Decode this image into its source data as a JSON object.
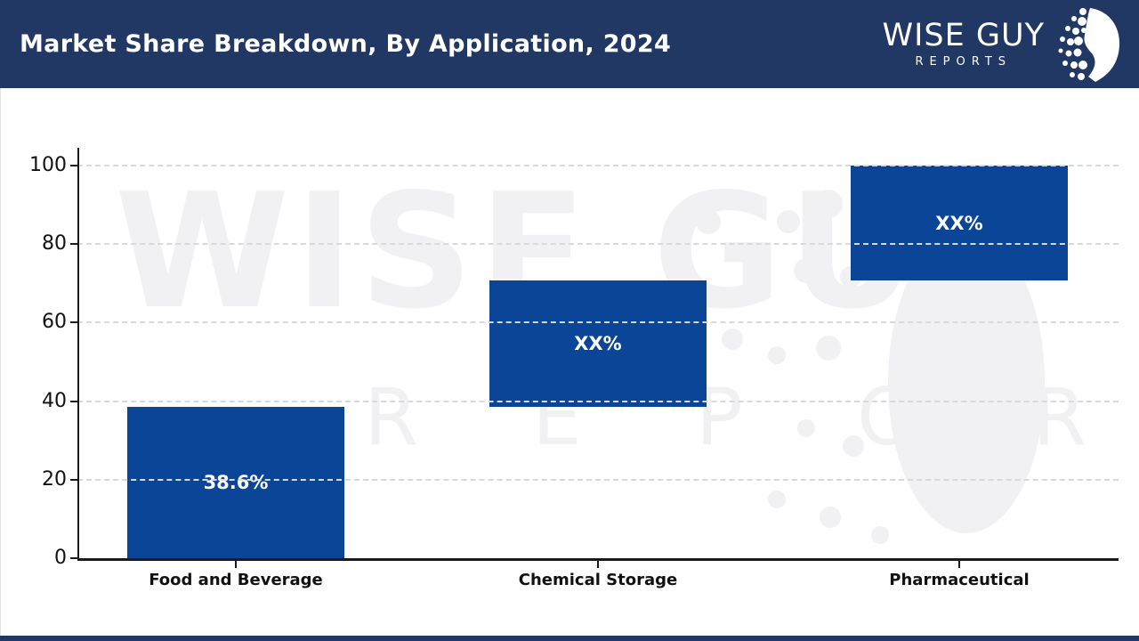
{
  "header": {
    "title": "Market Share Breakdown, By Application, 2024",
    "logo": {
      "line1": "WISE GUY",
      "line2": "REPORTS"
    }
  },
  "watermark": {
    "line1": "WISE GUY",
    "line2": "R E P O R T S"
  },
  "colors": {
    "header_bg": "#213764",
    "footer_bg": "#213764",
    "bar": "#0a4598",
    "grid": "#d9d9d9",
    "axis": "#1a1a1a",
    "value_label": "#ffffff",
    "watermark": "#f1f1f3"
  },
  "chart_data": {
    "type": "bar",
    "variant": "floating-waterfall",
    "title": "Market Share Breakdown, By Application, 2024",
    "categories": [
      "Food and Beverage",
      "Chemical Storage",
      "Pharmaceutical"
    ],
    "segments": [
      {
        "category": "Food and Beverage",
        "start": 0,
        "end": 38.6,
        "label": "38.6%"
      },
      {
        "category": "Chemical Storage",
        "start": 38.6,
        "end": 70.7,
        "label": "XX%"
      },
      {
        "category": "Pharmaceutical",
        "start": 70.7,
        "end": 100,
        "label": "XX%"
      }
    ],
    "xlabel": "",
    "ylabel": "",
    "yticks": [
      0,
      20,
      40,
      60,
      80,
      100
    ],
    "ylim": [
      0,
      105
    ],
    "grid": true,
    "grid_style": "dashed",
    "legend": "none",
    "unit": "%"
  }
}
